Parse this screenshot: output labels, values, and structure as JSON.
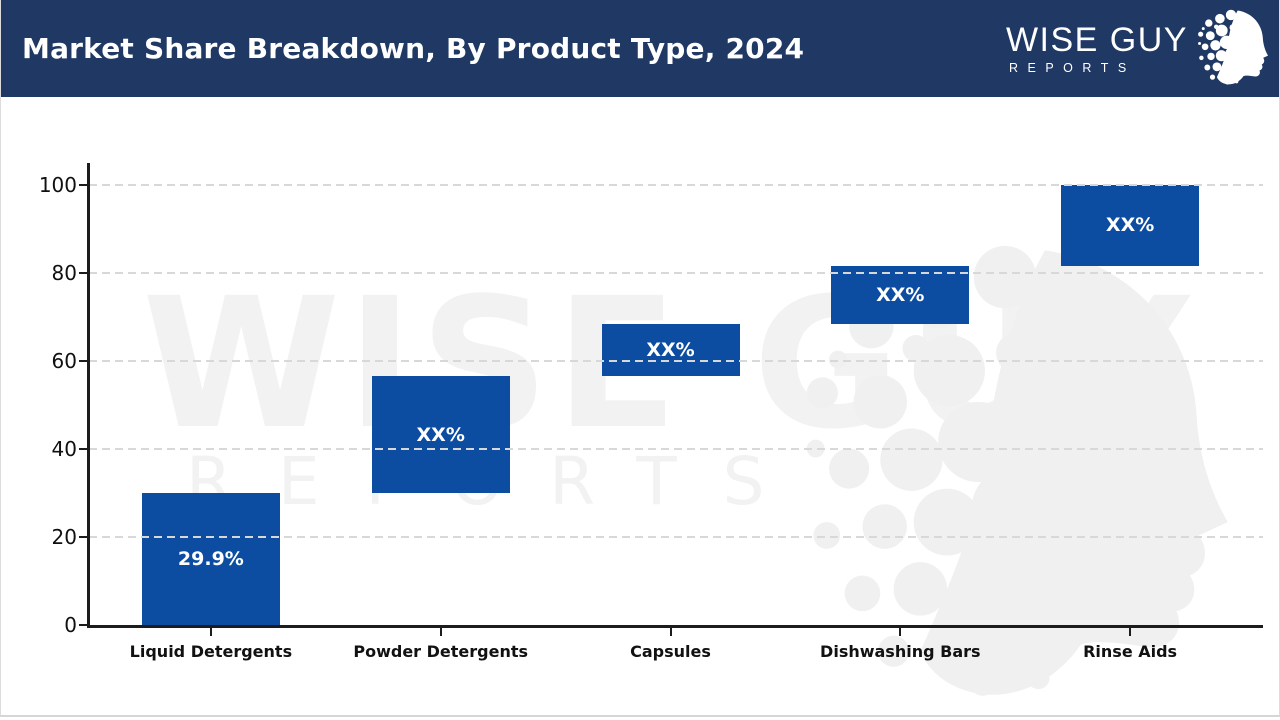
{
  "header": {
    "title": "Market Share Breakdown, By Product Type, 2024",
    "bg_color": "#1f3864",
    "logo": {
      "name": "WISE GUY",
      "tagline": "REPORTS"
    }
  },
  "watermark": {
    "line1": "WISE GUY",
    "line2": "REPORTS"
  },
  "chart_data": {
    "type": "bar",
    "subtype": "waterfall",
    "title": "Market Share Breakdown, By Product Type, 2024",
    "xlabel": "",
    "ylabel": "",
    "ylim": [
      0,
      105
    ],
    "yticks": [
      0,
      20,
      40,
      60,
      80,
      100
    ],
    "grid": "horizontal dashed gridlines drawn above bars",
    "legend": "none",
    "bar_color": "#0c4da2",
    "value_label_color": "#ffffff",
    "categories": [
      "Liquid Detergents",
      "Powder Detergents",
      "Capsules",
      "Dishwashing Bars",
      "Rinse Aids"
    ],
    "segments": [
      {
        "category": "Liquid Detergents",
        "start": 0,
        "end": 29.9,
        "value_label": "29.9%"
      },
      {
        "category": "Powder Detergents",
        "start": 29.9,
        "end": 56.6,
        "value_label": "XX%"
      },
      {
        "category": "Capsules",
        "start": 56.6,
        "end": 68.4,
        "value_label": "XX%"
      },
      {
        "category": "Dishwashing Bars",
        "start": 68.4,
        "end": 81.6,
        "value_label": "XX%"
      },
      {
        "category": "Rinse Aids",
        "start": 81.6,
        "end": 100,
        "value_label": "XX%"
      }
    ]
  }
}
